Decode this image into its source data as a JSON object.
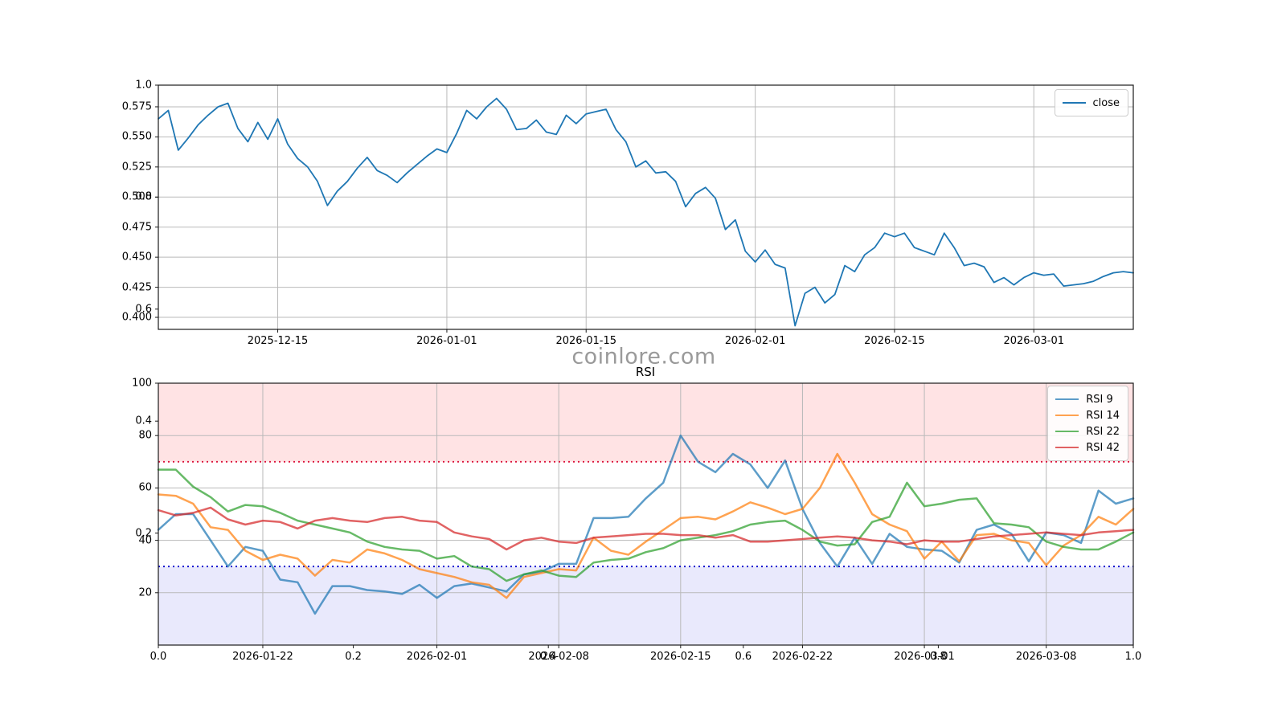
{
  "watermark": "coinlore.com",
  "overlay_axis": {
    "x_tick_labels": [
      "0.0",
      "0.2",
      "0.4",
      "0.6",
      "0.8",
      "1.0"
    ],
    "y_tick_labels": [
      "1.0",
      "0.8",
      "0.6",
      "0.4",
      "0.2"
    ]
  },
  "colors": {
    "close_line": "#1f77b4",
    "rsi9_line": "#1f77b4",
    "rsi14_line": "#ff7f0e",
    "rsi22_line": "#2ca02c",
    "rsi42_line": "#d62728",
    "overbought_band": "rgba(255,80,90,0.16)",
    "oversold_band": "rgba(70,70,230,0.12)",
    "overbought_dotted": "#dc143c",
    "oversold_dotted": "#0000cc",
    "gridline": "#b9b9b9",
    "spine": "#1a1a1a",
    "watermark_gray": "#9a9a9a"
  },
  "chart_data": [
    {
      "type": "line",
      "name": "price-chart",
      "title": "",
      "grid": true,
      "legend_position": "upper right",
      "legend": [
        {
          "label": "close",
          "color": "#1f77b4"
        }
      ],
      "date_range": [
        "2025-12-03",
        "2026-03-11"
      ],
      "n_points": 99,
      "x_tick_index": [
        12,
        29,
        43,
        60,
        74,
        88
      ],
      "x_tick_labels": [
        "2025-12-15",
        "2026-01-01",
        "2026-01-15",
        "2026-02-01",
        "2026-02-15",
        "2026-03-01"
      ],
      "y_tick_values": [
        0.4,
        0.425,
        0.45,
        0.475,
        0.5,
        0.525,
        0.55,
        0.575
      ],
      "y_tick_labels": [
        "0.400",
        "0.425",
        "0.450",
        "0.475",
        "0.500",
        "0.525",
        "0.550",
        "0.575"
      ],
      "ylim": [
        0.39,
        0.593
      ],
      "series": [
        {
          "name": "close",
          "color": "#1f77b4",
          "width": 1.8,
          "opacity": 1,
          "values": [
            0.565,
            0.572,
            0.539,
            0.549,
            0.56,
            0.568,
            0.575,
            0.578,
            0.557,
            0.546,
            0.562,
            0.548,
            0.565,
            0.544,
            0.532,
            0.525,
            0.513,
            0.493,
            0.505,
            0.513,
            0.524,
            0.533,
            0.522,
            0.518,
            0.512,
            0.52,
            0.527,
            0.534,
            0.54,
            0.537,
            0.553,
            0.572,
            0.565,
            0.575,
            0.582,
            0.573,
            0.556,
            0.557,
            0.564,
            0.554,
            0.552,
            0.568,
            0.561,
            0.569,
            0.571,
            0.573,
            0.556,
            0.546,
            0.525,
            0.53,
            0.52,
            0.521,
            0.513,
            0.492,
            0.503,
            0.508,
            0.499,
            0.473,
            0.481,
            0.455,
            0.446,
            0.456,
            0.444,
            0.441,
            0.393,
            0.42,
            0.425,
            0.412,
            0.419,
            0.443,
            0.438,
            0.452,
            0.458,
            0.47,
            0.467,
            0.47,
            0.458,
            0.455,
            0.452,
            0.47,
            0.458,
            0.443,
            0.445,
            0.442,
            0.429,
            0.433,
            0.427,
            0.433,
            0.437,
            0.435,
            0.436,
            0.426,
            0.427,
            0.428,
            0.43,
            0.434,
            0.437,
            0.438,
            0.437
          ]
        }
      ]
    },
    {
      "type": "line",
      "name": "rsi-chart",
      "title": "RSI",
      "grid": true,
      "legend_position": "upper right",
      "legend": [
        {
          "label": "RSI 9",
          "color": "#1f77b4"
        },
        {
          "label": "RSI 14",
          "color": "#ff7f0e"
        },
        {
          "label": "RSI 22",
          "color": "#2ca02c"
        },
        {
          "label": "RSI 42",
          "color": "#d62728"
        }
      ],
      "date_range": [
        "2026-01-16",
        "2026-03-13"
      ],
      "n_points": 57,
      "x_tick_index": [
        6,
        16,
        23,
        30,
        37,
        44,
        51
      ],
      "x_tick_labels": [
        "2026-01-22",
        "2026-02-01",
        "2026-02-08",
        "2026-02-15",
        "2026-02-22",
        "2026-03-01",
        "2026-03-08"
      ],
      "y_tick_values": [
        20,
        40,
        60,
        80,
        100
      ],
      "y_tick_labels": [
        "20",
        "40",
        "60",
        "80",
        "100"
      ],
      "ylim": [
        0,
        100
      ],
      "y_min_label": "0.0",
      "overbought_level": 70,
      "oversold_level": 30,
      "series": [
        {
          "name": "RSI 9",
          "color": "#1f77b4",
          "width": 2.5,
          "opacity": 0.72,
          "values": [
            44,
            50,
            50,
            40,
            30,
            37.5,
            36,
            25,
            24,
            12,
            22.5,
            22.5,
            21,
            20.5,
            19.5,
            23,
            18,
            22.5,
            23.5,
            22,
            20.5,
            27,
            28,
            31,
            31,
            48.5,
            48.5,
            49,
            56,
            62,
            80,
            70,
            66,
            73,
            69,
            60,
            70.5,
            52,
            39,
            30,
            41,
            31,
            42.5,
            37.5,
            36.5,
            36,
            31.5,
            44,
            46,
            42.5,
            32,
            43,
            42,
            39,
            59,
            54,
            56
          ]
        },
        {
          "name": "RSI 14",
          "color": "#ff7f0e",
          "width": 2.5,
          "opacity": 0.72,
          "values": [
            57.5,
            57,
            54,
            45,
            44,
            36,
            32.5,
            34.5,
            33,
            26.5,
            32.5,
            31.5,
            36.5,
            35,
            32.5,
            29,
            27.5,
            26,
            24,
            23,
            18,
            26,
            27.5,
            29,
            28.5,
            41,
            36,
            34.5,
            39.5,
            44,
            48.5,
            49,
            48,
            51,
            54.5,
            52.5,
            50,
            52,
            60,
            73,
            62,
            50,
            46,
            43.5,
            33,
            39.5,
            32,
            42,
            42.5,
            40,
            39,
            30.5,
            38,
            42,
            49,
            46,
            52
          ]
        },
        {
          "name": "RSI 22",
          "color": "#2ca02c",
          "width": 2.5,
          "opacity": 0.72,
          "values": [
            67,
            67,
            60.5,
            56.5,
            51,
            53.5,
            53,
            50.5,
            47.5,
            46,
            44.5,
            43,
            39.5,
            37.5,
            36.5,
            36,
            33,
            34,
            30,
            29,
            24.5,
            27,
            28.5,
            26.5,
            26,
            31.5,
            32.5,
            33,
            35.5,
            37,
            40,
            41,
            42,
            43.5,
            46,
            47,
            47.5,
            44,
            39.5,
            38,
            38.5,
            47,
            49,
            62,
            53,
            54,
            55.5,
            56,
            46.5,
            46,
            45,
            39.5,
            37.5,
            36.5,
            36.5,
            39.5,
            43
          ]
        },
        {
          "name": "RSI 42",
          "color": "#d62728",
          "width": 2.5,
          "opacity": 0.72,
          "values": [
            51.5,
            49.5,
            50.5,
            52.5,
            48,
            46,
            47.5,
            47,
            44.5,
            47.5,
            48.5,
            47.5,
            47,
            48.5,
            49,
            47.5,
            47,
            43,
            41.5,
            40.5,
            36.5,
            40,
            41,
            39.5,
            39,
            41,
            41.5,
            42,
            42.5,
            42.5,
            42,
            42,
            41,
            42,
            39.5,
            39.5,
            40,
            40.5,
            41,
            41.5,
            41,
            40,
            39.5,
            38.5,
            40,
            39.5,
            39.5,
            40.5,
            41.5,
            42,
            42.5,
            43,
            42.5,
            42,
            43,
            43.5,
            44
          ]
        }
      ]
    }
  ]
}
